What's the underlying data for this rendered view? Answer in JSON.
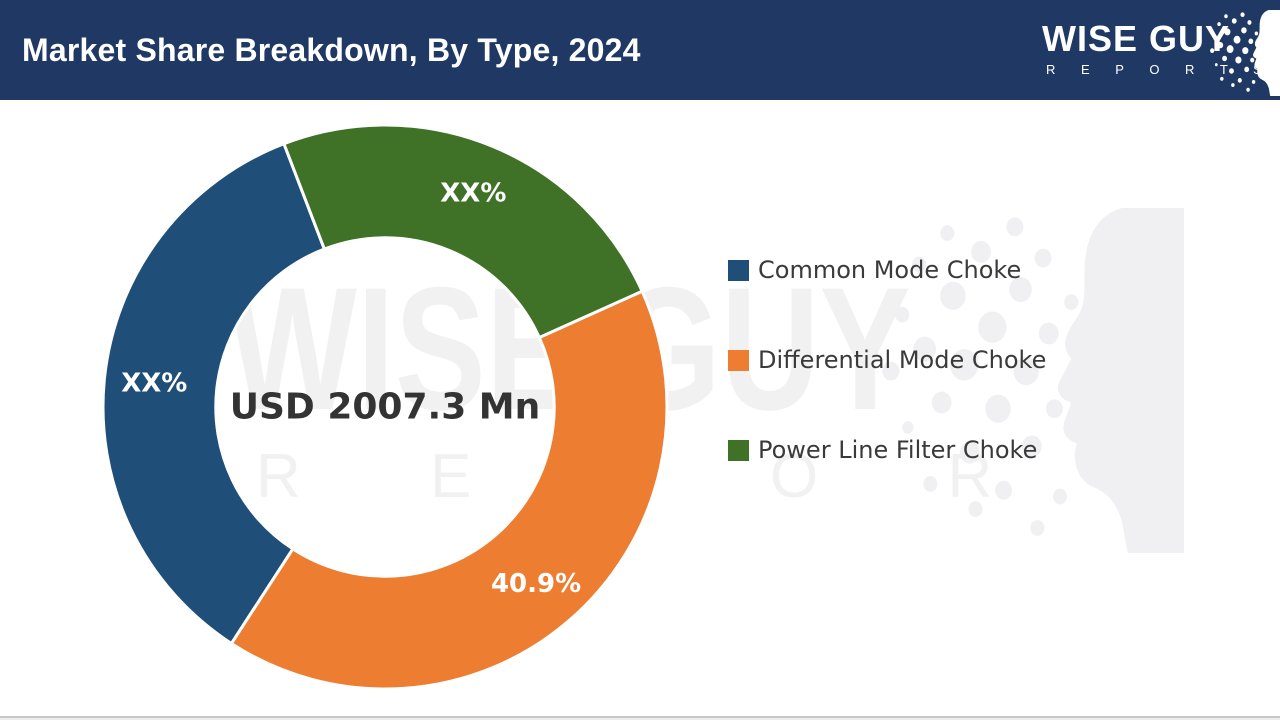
{
  "header": {
    "title": "Market Share Breakdown, By Type, 2024",
    "bg_color": "#1f3864",
    "logo": {
      "line1": "WISE GUY",
      "line2": "R E P O R T S"
    }
  },
  "watermark": {
    "line1": "WISE GUY",
    "line2": "R E P O R T S"
  },
  "chart_data": {
    "type": "pie",
    "subtype": "donut",
    "title": "Market Share Breakdown, By Type, 2024",
    "center_label": "USD 2007.3 Mn",
    "start_angle_deg": 111,
    "direction": "counterclockwise",
    "inner_radius_ratio": 0.6,
    "legend_position": "right",
    "separator_color": "#ffffff",
    "label_color": "#ffffff",
    "series": [
      {
        "name": "Common Mode Choke",
        "value_pct": 35.0,
        "label": "XX%",
        "color": "#1f4e79"
      },
      {
        "name": "Differential Mode Choke",
        "value_pct": 40.9,
        "label": "40.9%",
        "color": "#ed7d31"
      },
      {
        "name": "Power Line Filter Choke",
        "value_pct": 24.1,
        "label": "XX%",
        "color": "#3f7127"
      }
    ]
  }
}
